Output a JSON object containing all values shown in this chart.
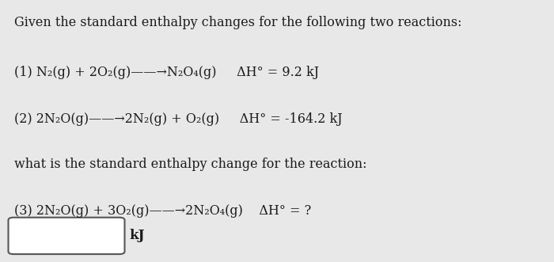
{
  "background_color": "#e8e8e8",
  "text_color": "#1a1a1a",
  "title_line": "Given the standard enthalpy changes for the following two reactions:",
  "reaction1_full": "(1) N₂(g) + 2O₂(g)——→N₂O₄(g)     ΔH° = 9.2 kJ",
  "reaction2_full": "(2) 2N₂O(g)——→2N₂(g) + O₂(g)     ΔH° = -164.2 kJ",
  "question_line": "what is the standard enthalpy change for the reaction:",
  "reaction3_full": "(3) 2N₂O(g) + 3O₂(g)——→2N₂O₄(g)    ΔH° = ?",
  "box_label": "kJ",
  "font_size_title": 11.5,
  "font_size_reaction": 11.5,
  "font_size_question": 11.5,
  "font_size_box": 12
}
